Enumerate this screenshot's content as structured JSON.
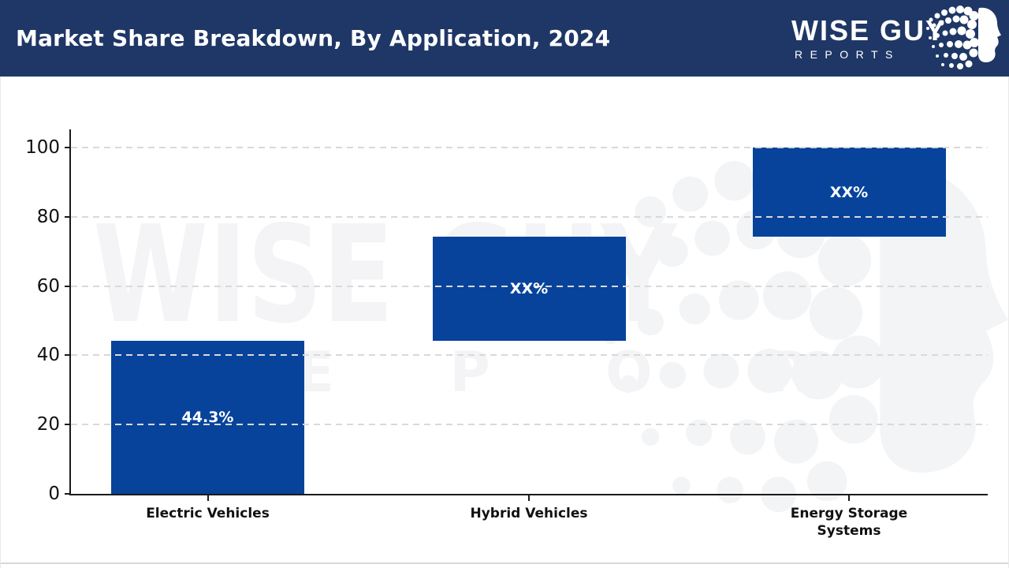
{
  "header": {
    "title": "Market Share Breakdown, By Application, 2024",
    "logo": {
      "line1": "WISE GUY",
      "line2": "REPORTS"
    }
  },
  "watermark": {
    "line1": "WISE GUY",
    "line2": "R E P O R T S"
  },
  "colors": {
    "header_bg": "#1f3766",
    "bar": "#08439b",
    "bar_label": "#ffffff",
    "grid": "#d9d9d9",
    "axis": "#1a1a1a",
    "title_text": "#ffffff",
    "watermark": "#f4f4f6"
  },
  "chart_data": {
    "type": "bar",
    "subtype": "floating-waterfall",
    "title": "Market Share Breakdown, By Application, 2024",
    "categories": [
      "Electric Vehicles",
      "Hybrid Vehicles",
      "Energy Storage Systems"
    ],
    "category_lines": [
      [
        "Electric Vehicles"
      ],
      [
        "Hybrid Vehicles"
      ],
      [
        "Energy Storage",
        "Systems"
      ]
    ],
    "segments": [
      {
        "category": "Electric Vehicles",
        "start": 0,
        "end": 44.3,
        "label": "44.3%"
      },
      {
        "category": "Hybrid Vehicles",
        "start": 44.3,
        "end": 74.2,
        "label": "XX%"
      },
      {
        "category": "Energy Storage Systems",
        "start": 74.2,
        "end": 100,
        "label": "XX%"
      }
    ],
    "xlabel": "",
    "ylabel": "",
    "ylim": [
      0,
      100
    ],
    "yticks": [
      0,
      20,
      40,
      60,
      80,
      100
    ],
    "grid": "horizontal-dashed-above-bars",
    "legend": "none"
  }
}
